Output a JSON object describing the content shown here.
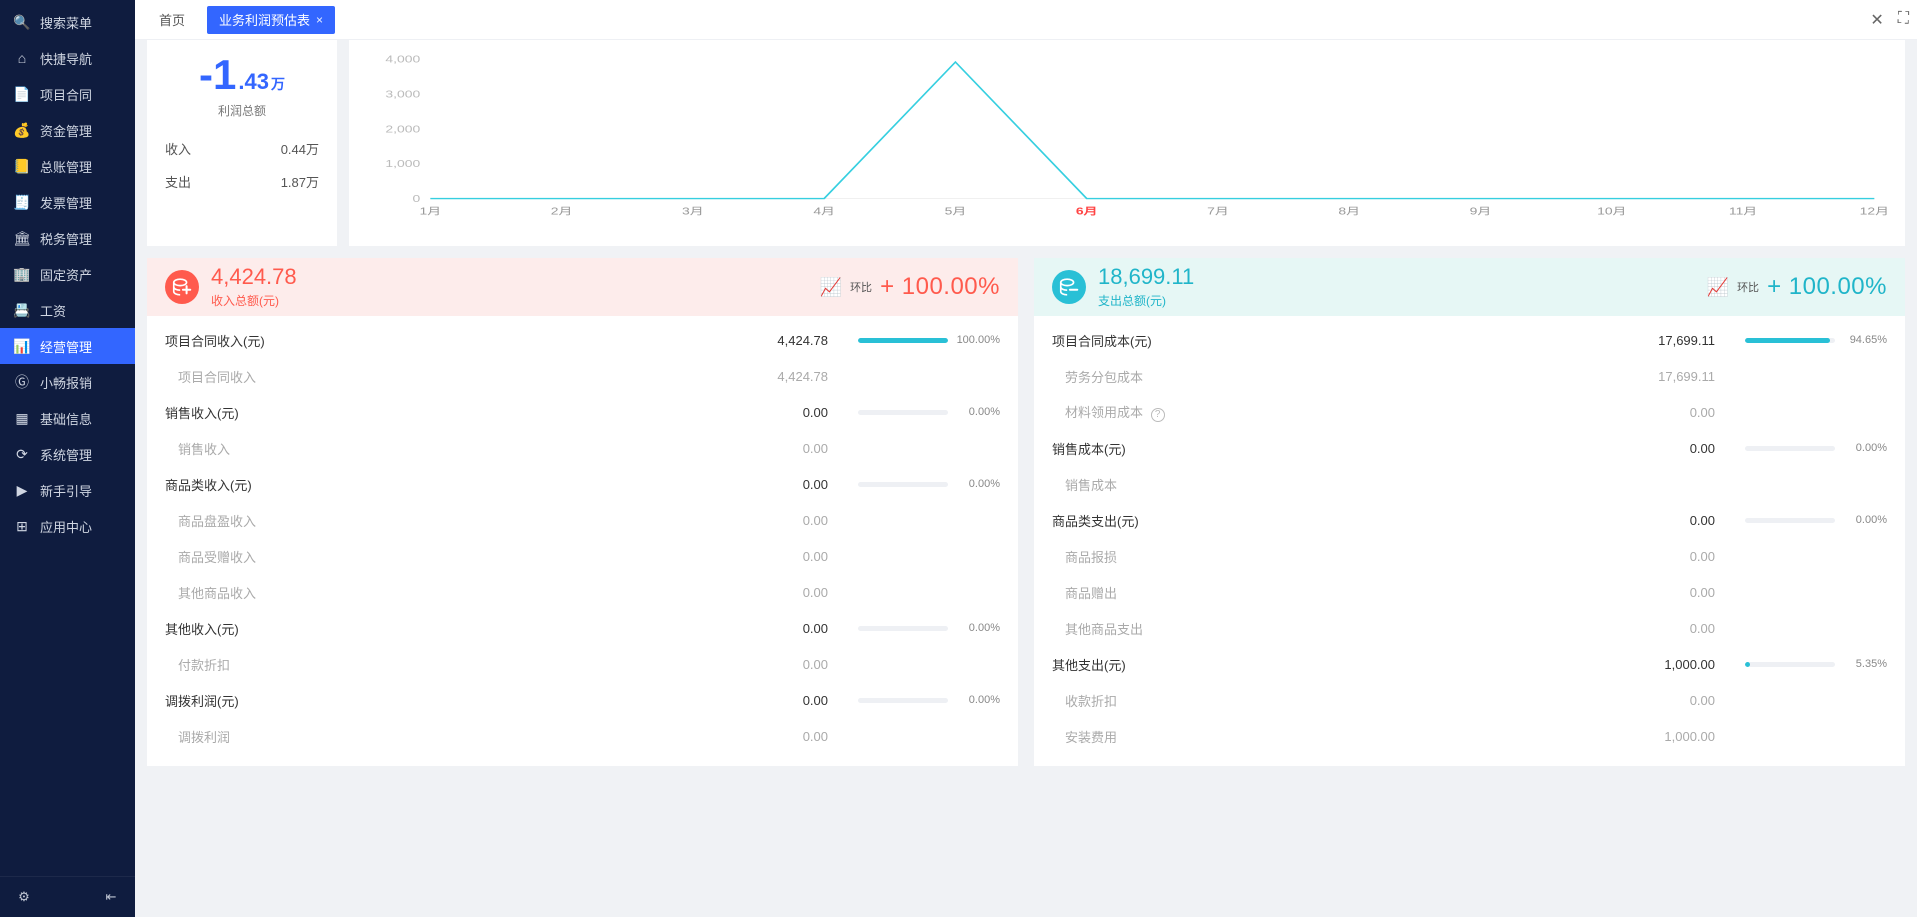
{
  "sidebar": {
    "items": [
      {
        "label": "搜索菜单",
        "icon": "🔍"
      },
      {
        "label": "快捷导航",
        "icon": "⌂"
      },
      {
        "label": "项目合同",
        "icon": "📄"
      },
      {
        "label": "资金管理",
        "icon": "💰"
      },
      {
        "label": "总账管理",
        "icon": "📒"
      },
      {
        "label": "发票管理",
        "icon": "🧾"
      },
      {
        "label": "税务管理",
        "icon": "🏛"
      },
      {
        "label": "固定资产",
        "icon": "🏢"
      },
      {
        "label": "工资",
        "icon": "📇"
      },
      {
        "label": "经营管理",
        "icon": "📊",
        "active": true
      },
      {
        "label": "小畅报销",
        "icon": "Ⓖ"
      },
      {
        "label": "基础信息",
        "icon": "▦"
      },
      {
        "label": "系统管理",
        "icon": "⟳"
      },
      {
        "label": "新手引导",
        "icon": "▶"
      },
      {
        "label": "应用中心",
        "icon": "⊞"
      }
    ]
  },
  "tabs": {
    "home": "首页",
    "active": "业务利润预估表"
  },
  "summary": {
    "profit_int": "-1",
    "profit_dec": ".43",
    "profit_unit": "万",
    "profit_label": "利润总额",
    "income_label": "收入",
    "income_value": "0.44万",
    "expense_label": "支出",
    "expense_value": "1.87万"
  },
  "chart": {
    "type": "line",
    "y_ticks": [
      "4,000",
      "3,000",
      "2,000",
      "1,000",
      "0"
    ],
    "x_labels": [
      "1月",
      "2月",
      "3月",
      "4月",
      "5月",
      "6月",
      "7月",
      "8月",
      "9月",
      "10月",
      "11月",
      "12月"
    ],
    "highlight_x_index": 5,
    "values": [
      0,
      0,
      0,
      0,
      4400,
      0,
      0,
      0,
      0,
      0,
      0,
      0
    ],
    "ylim": [
      0,
      4500
    ],
    "line_color": "#36cfe0",
    "grid_color": "#eeeeee",
    "axis_label_color": "#bbbbbb",
    "background_color": "#ffffff"
  },
  "income_panel": {
    "amount": "4,424.78",
    "sub": "收入总额(元)",
    "ring_label": "环比",
    "ratio": "+ 100.00%",
    "accent_color": "#ff5a4d",
    "bar_color": "#29c0d6",
    "rows": [
      {
        "name": "项目合同收入(元)",
        "val": "4,424.78",
        "pct": "100.00%",
        "fill": 100,
        "major": true
      },
      {
        "name": "项目合同收入",
        "val": "4,424.78",
        "major": false
      },
      {
        "name": "销售收入(元)",
        "val": "0.00",
        "pct": "0.00%",
        "fill": 0,
        "major": true
      },
      {
        "name": "销售收入",
        "val": "0.00",
        "major": false
      },
      {
        "name": "商品类收入(元)",
        "val": "0.00",
        "pct": "0.00%",
        "fill": 0,
        "major": true
      },
      {
        "name": "商品盘盈收入",
        "val": "0.00",
        "major": false
      },
      {
        "name": "商品受赠收入",
        "val": "0.00",
        "major": false
      },
      {
        "name": "其他商品收入",
        "val": "0.00",
        "major": false
      },
      {
        "name": "其他收入(元)",
        "val": "0.00",
        "pct": "0.00%",
        "fill": 0,
        "major": true
      },
      {
        "name": "付款折扣",
        "val": "0.00",
        "major": false
      },
      {
        "name": "调拨利润(元)",
        "val": "0.00",
        "pct": "0.00%",
        "fill": 0,
        "major": true
      },
      {
        "name": "调拨利润",
        "val": "0.00",
        "major": false
      }
    ]
  },
  "expense_panel": {
    "amount": "18,699.11",
    "sub": "支出总额(元)",
    "ring_label": "环比",
    "ratio": "+ 100.00%",
    "accent_color": "#20b5c9",
    "bar_color": "#29c0d6",
    "rows": [
      {
        "name": "项目合同成本(元)",
        "val": "17,699.11",
        "pct": "94.65%",
        "fill": 94.65,
        "major": true
      },
      {
        "name": "劳务分包成本",
        "val": "17,699.11",
        "major": false
      },
      {
        "name": "材料领用成本",
        "val": "0.00",
        "major": false,
        "help": true
      },
      {
        "name": "销售成本(元)",
        "val": "0.00",
        "pct": "0.00%",
        "fill": 0,
        "major": true
      },
      {
        "name": "销售成本",
        "val": "",
        "major": false
      },
      {
        "name": "商品类支出(元)",
        "val": "0.00",
        "pct": "0.00%",
        "fill": 0,
        "major": true
      },
      {
        "name": "商品报损",
        "val": "0.00",
        "major": false
      },
      {
        "name": "商品赠出",
        "val": "0.00",
        "major": false
      },
      {
        "name": "其他商品支出",
        "val": "0.00",
        "major": false
      },
      {
        "name": "其他支出(元)",
        "val": "1,000.00",
        "pct": "5.35%",
        "fill": 5.35,
        "major": true
      },
      {
        "name": "收款折扣",
        "val": "0.00",
        "major": false
      },
      {
        "name": "安装费用",
        "val": "1,000.00",
        "major": false
      }
    ]
  }
}
